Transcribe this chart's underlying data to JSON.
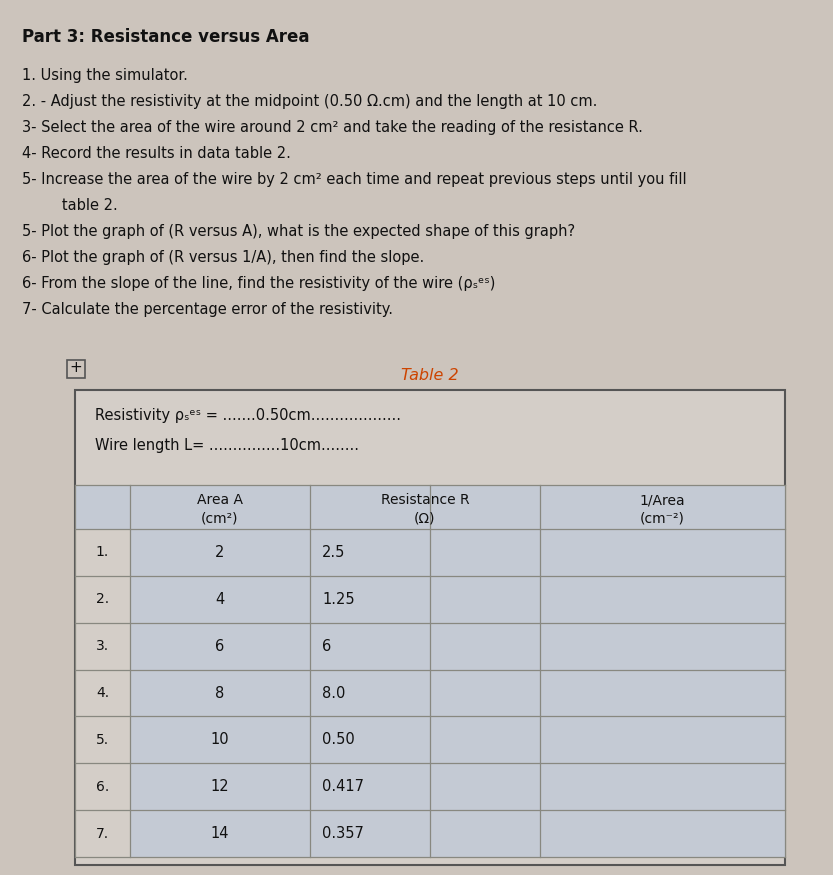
{
  "title": "Part 3: Resistance versus Area",
  "instructions": [
    {
      "text": "1. Using the simulator.",
      "indent": 0
    },
    {
      "text": "2. - Adjust the resistivity at the midpoint (0.50 Ω.cm) and the length at 10 cm.",
      "indent": 0
    },
    {
      "text": "3- Select the area of the wire around 2 cm² and take the reading of the resistance R.",
      "indent": 0
    },
    {
      "text": "4- Record the results in data table 2.",
      "indent": 0
    },
    {
      "text": "5- Increase the area of the wire by 2 cm² each time and repeat previous steps until you fill",
      "indent": 0
    },
    {
      "text": "   table 2.",
      "indent": 1
    },
    {
      "text": "5- Plot the graph of (R versus A), what is the expected shape of this graph?",
      "indent": 0
    },
    {
      "text": "6- Plot the graph of (R versus 1/A), then find the slope.",
      "indent": 0
    },
    {
      "text": "6- From the slope of the line, find the resistivity of the wire (ρₛᵉˢ)",
      "indent": 0
    },
    {
      "text": "7- Calculate the percentage error of the resistivity.",
      "indent": 0
    }
  ],
  "table_title": "Table 2",
  "resistivity_line": "Resistivity ρₛᵉˢ = .......0.50cm...................",
  "wire_length_line": "Wire length L= ...............10cm........",
  "col_headers_line1": [
    "Area A",
    "Resistance R",
    "1/Area"
  ],
  "col_headers_line2": [
    "(cm²)",
    "(Ω)",
    "(cm⁻²)"
  ],
  "row_numbers": [
    "1.",
    "2.",
    "3.",
    "4.",
    "5.",
    "6.",
    "7."
  ],
  "area_values": [
    "2",
    "4",
    "6",
    "8",
    "10",
    "12",
    "14"
  ],
  "resistance_values": [
    "2.5",
    "1.25",
    "6",
    "8.0",
    "0.50",
    "0.417",
    "0.357"
  ],
  "page_bg": "#ccc4bc",
  "table_outer_bg": "#d4cec8",
  "cell_bg_blue": "#c4cad4",
  "header_cell_bg": "#c4cad4",
  "row_num_bg": "#d4cec8",
  "border_color": "#888880",
  "text_color": "#111111",
  "table_title_color": "#cc4400"
}
